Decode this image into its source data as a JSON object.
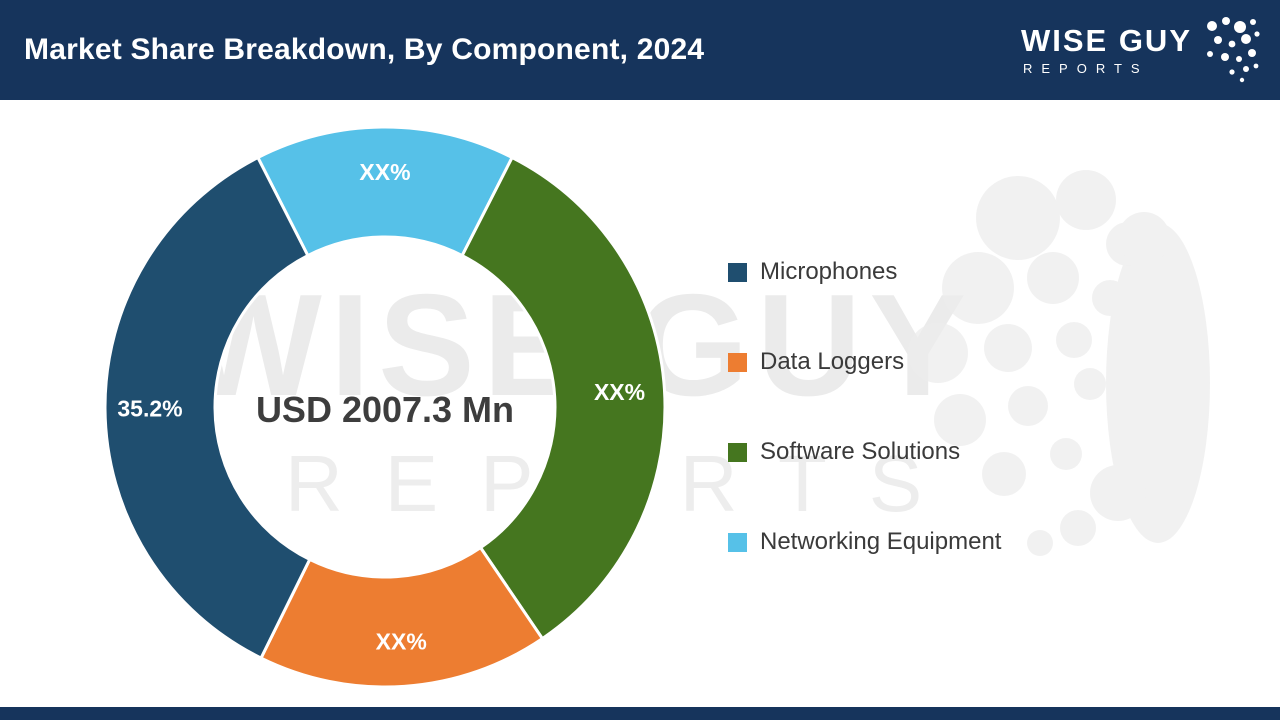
{
  "header": {
    "title": "Market Share Breakdown, By Component, 2024",
    "brand": {
      "name": "WISE GUY",
      "sub": "REPORTS"
    }
  },
  "chart_data": {
    "type": "pie",
    "variant": "donut",
    "title": "Market Share Breakdown, By Component, 2024",
    "center_label": "USD 2007.3 Mn",
    "start_angle_deg": -27,
    "draw_order": [
      3,
      2,
      1,
      0
    ],
    "legend_position": "right",
    "segments": [
      {
        "name": "Microphones",
        "label": "35.2%",
        "value": 35.2,
        "color": "#1f4e6f"
      },
      {
        "name": "Data Loggers",
        "label": "XX%",
        "value": 16.8,
        "color": "#ed7d31"
      },
      {
        "name": "Software Solutions",
        "label": "XX%",
        "value": 33.0,
        "color": "#45761f"
      },
      {
        "name": "Networking Equipment",
        "label": "XX%",
        "value": 15.0,
        "color": "#56c1e8"
      }
    ]
  },
  "legend": {
    "items": [
      {
        "label": "Microphones"
      },
      {
        "label": "Data Loggers"
      },
      {
        "label": "Software Solutions"
      },
      {
        "label": "Networking Equipment"
      }
    ]
  },
  "watermark": {
    "line1": "WISE GUY",
    "line2": "REPORTS"
  }
}
